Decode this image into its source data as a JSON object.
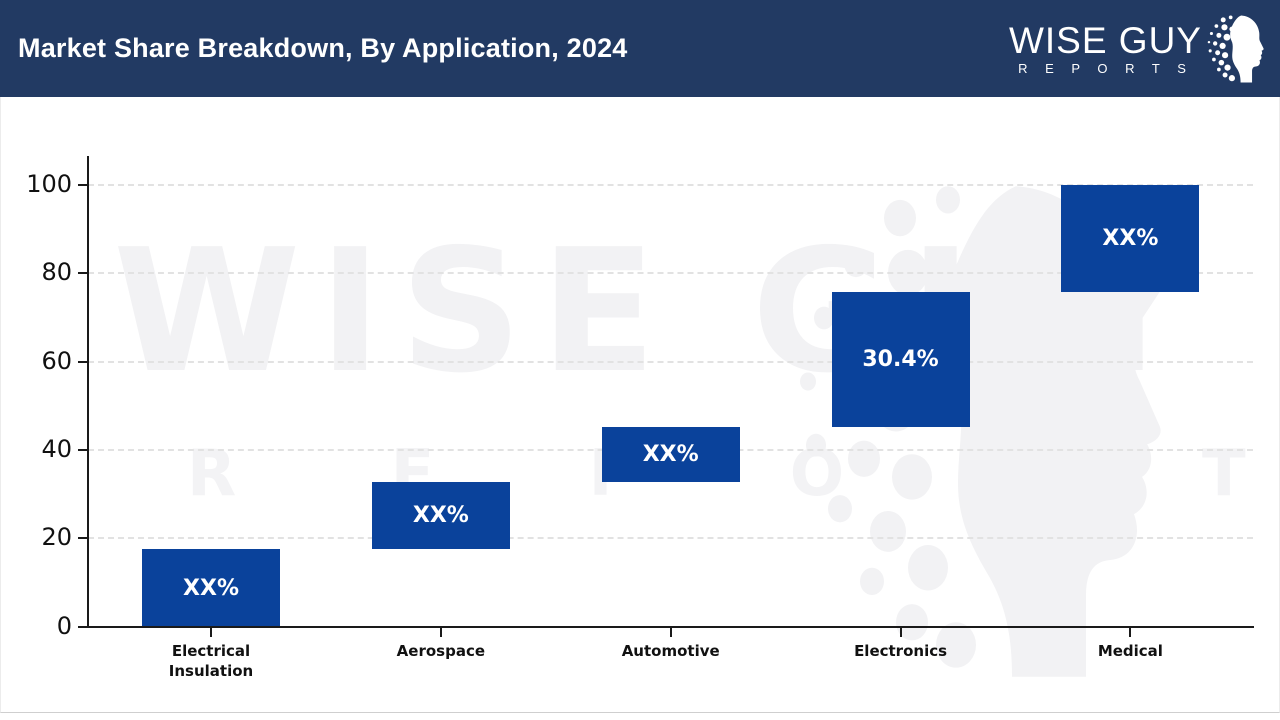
{
  "header": {
    "title": "Market Share Breakdown, By Application, 2024",
    "logo_line1": "WISE GUY",
    "logo_line2": "R E P O R T S"
  },
  "watermark": {
    "line1": "WISE GUY",
    "line2": "R E P O R T S"
  },
  "chart_data": {
    "type": "bar",
    "subtype": "waterfall",
    "title": "Market Share Breakdown, By Application, 2024",
    "categories": [
      "Electrical\nInsulation",
      "Aerospace",
      "Automotive",
      "Electronics",
      "Medical"
    ],
    "bars": [
      {
        "category": "Electrical Insulation",
        "start": 0,
        "end": 17.5,
        "value": 17.5,
        "label": "XX%"
      },
      {
        "category": "Aerospace",
        "start": 17.5,
        "end": 32.8,
        "value": 15.3,
        "label": "XX%"
      },
      {
        "category": "Automotive",
        "start": 32.8,
        "end": 45.3,
        "value": 12.5,
        "label": "XX%"
      },
      {
        "category": "Electronics",
        "start": 45.3,
        "end": 75.7,
        "value": 30.4,
        "label": "30.4%"
      },
      {
        "category": "Medical",
        "start": 75.7,
        "end": 100,
        "value": 24.3,
        "label": "XX%"
      }
    ],
    "yticks": [
      "0",
      "20",
      "40",
      "60",
      "80",
      "100"
    ],
    "ylim": [
      0,
      105
    ],
    "grid": "horizontal-dashed",
    "legend": "none",
    "xlabel": "",
    "ylabel": ""
  },
  "colors": {
    "header_bg": "#223a63",
    "bar_fill": "#0a429b",
    "bar_label": "#ffffff",
    "axis": "#1a1a1a",
    "gridline": "#e2e2e2",
    "watermark": "#f2f2f4"
  }
}
